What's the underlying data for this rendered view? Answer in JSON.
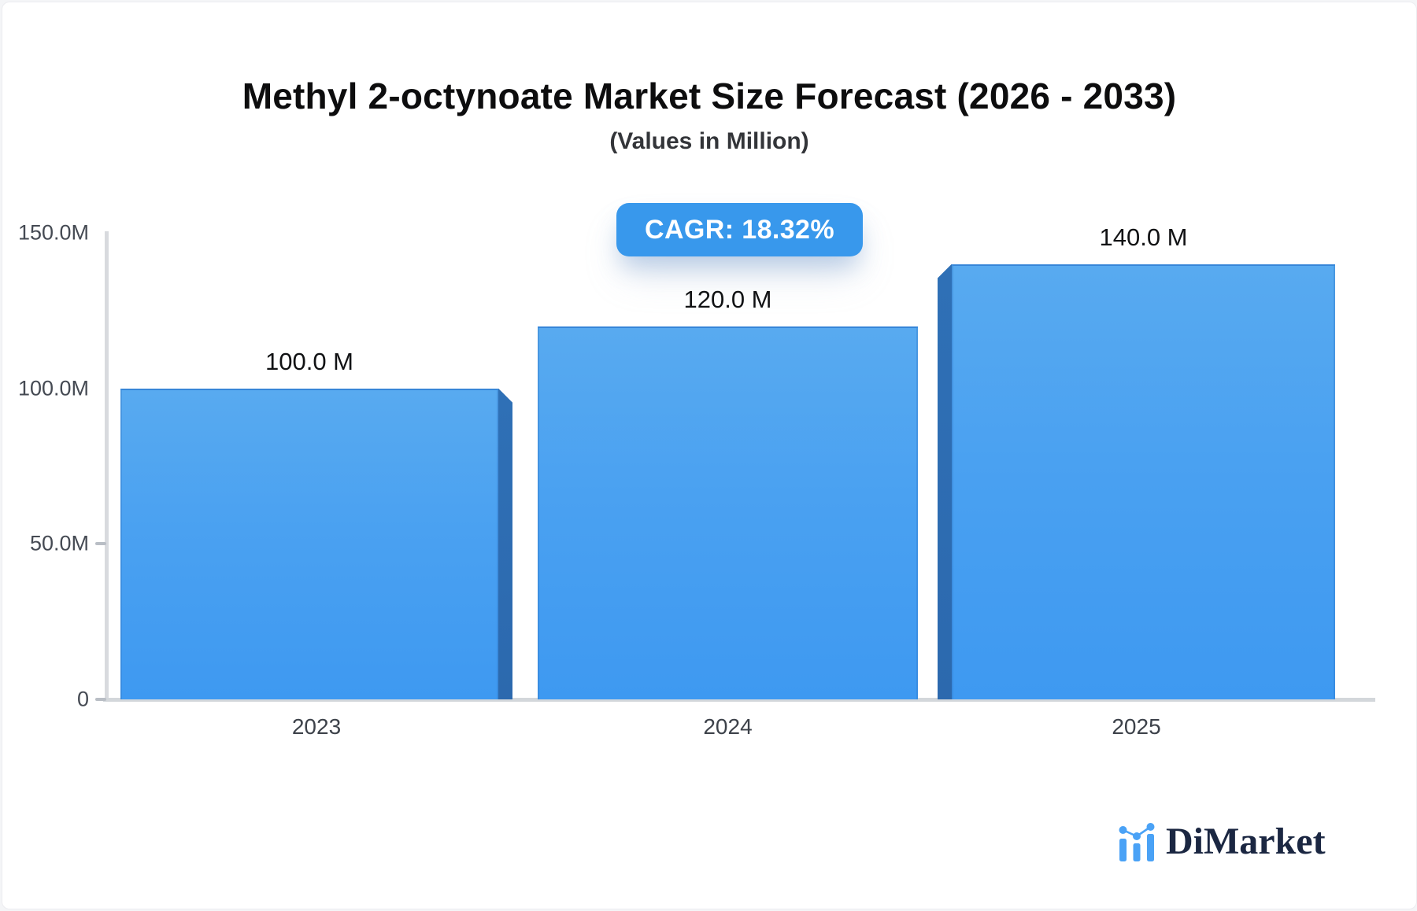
{
  "chart_data": {
    "type": "bar",
    "title": "Methyl 2-octynoate Market Size Forecast (2026 - 2033)",
    "subtitle": "(Values in Million)",
    "badge_label": "CAGR: 18.32%",
    "categories": [
      "2023",
      "2024",
      "2025"
    ],
    "values": [
      100,
      120,
      140
    ],
    "value_labels": [
      "100.0 M",
      "120.0 M",
      "140.0 M"
    ],
    "ytick_labels": [
      "150.0M",
      "100.0M",
      "50.0M",
      "0"
    ],
    "ytick_values": [
      150,
      100,
      50,
      0
    ],
    "ylim": [
      0,
      150
    ],
    "xlabel": "",
    "ylabel": "",
    "legend": "none",
    "grid": "off"
  },
  "branding": {
    "logo_text": "DiMarket",
    "logo_icon": "mini-bar-line-chart-icon"
  },
  "colors": {
    "bar_top": "#58aaf0",
    "bar_bottom": "#3e99f1",
    "bar_side_dark": "#2d6cb2",
    "badge_bg": "#3898ec",
    "axis_line": "#d8dade",
    "tick_text": "#454a53",
    "title_text": "#0d0d0e",
    "logo_text": "#1b2742",
    "logo_icon_blue": "#4aa2f6"
  }
}
